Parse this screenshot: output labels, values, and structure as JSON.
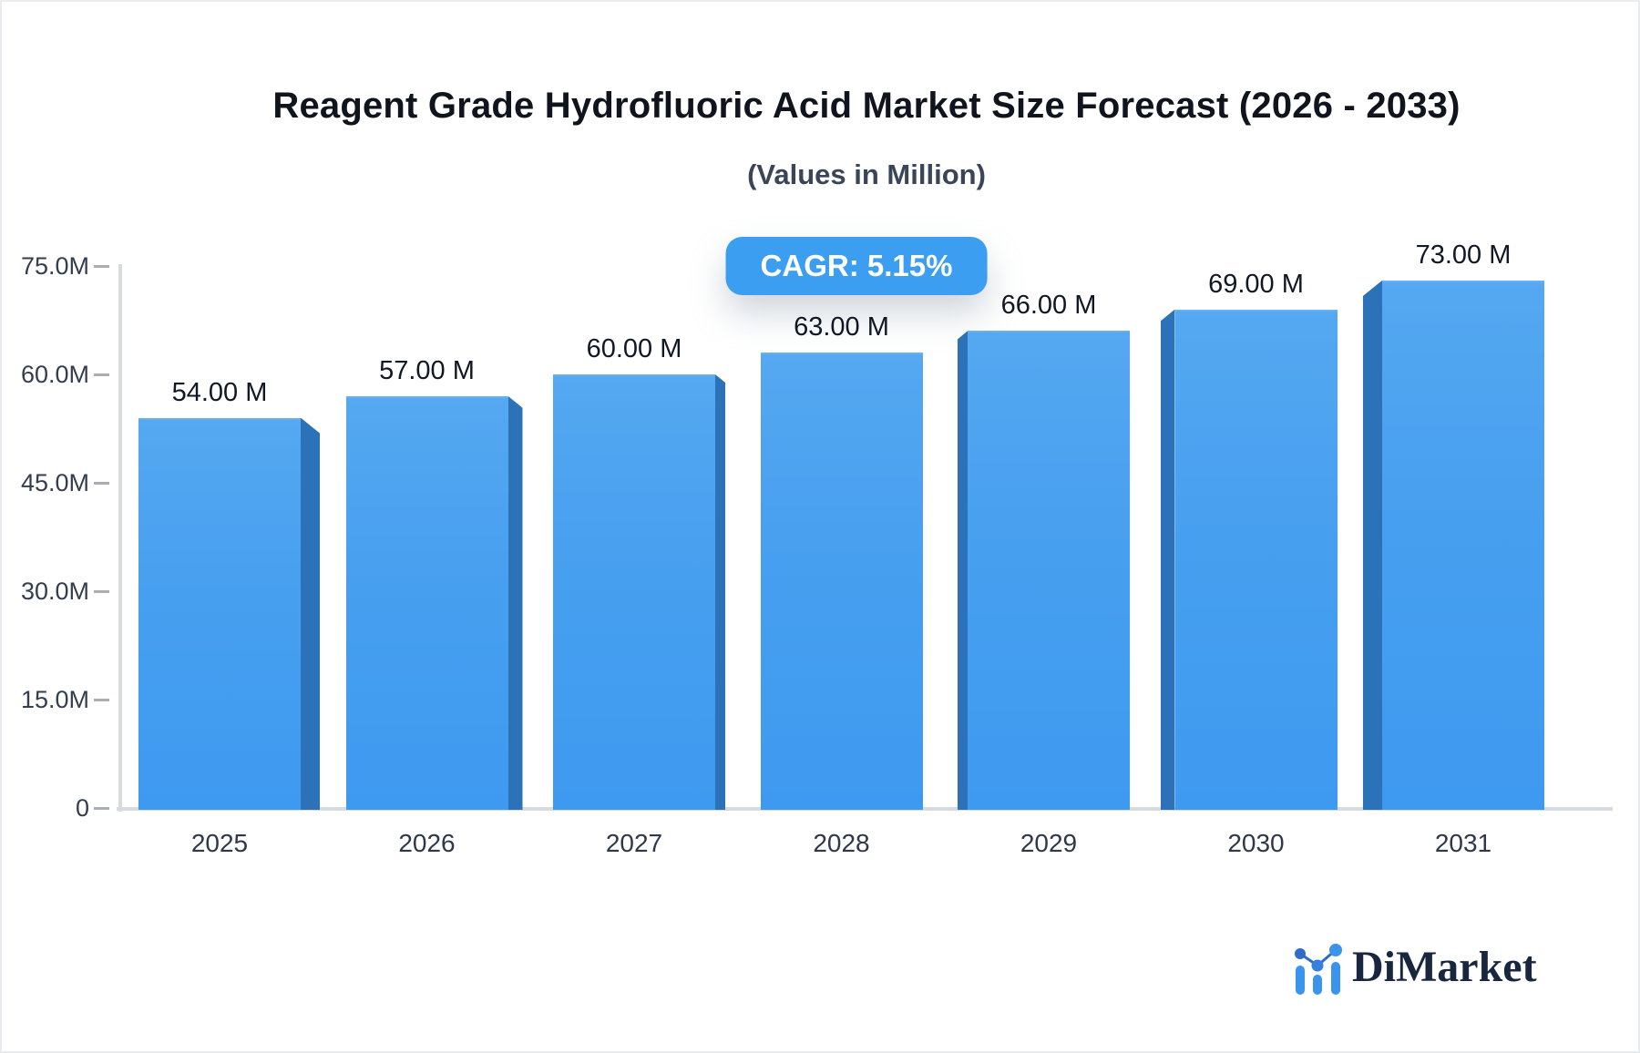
{
  "header": {
    "title": "Reagent Grade Hydrofluoric Acid Market Size Forecast (2026 - 2033)",
    "subtitle": "(Values in Million)"
  },
  "cagr_badge": {
    "label": "CAGR: 5.15%",
    "background": "#3c9ef1",
    "text_color": "#ffffff"
  },
  "chart_data": {
    "type": "bar",
    "title": "Reagent Grade Hydrofluoric Acid Market Size Forecast (2026 - 2033)",
    "subtitle": "(Values in Million)",
    "categories": [
      "2025",
      "2026",
      "2027",
      "2028",
      "2029",
      "2030",
      "2031"
    ],
    "values": [
      54,
      57,
      60,
      63,
      66,
      69,
      73
    ],
    "value_labels": [
      "54.00 M",
      "57.00 M",
      "60.00 M",
      "63.00 M",
      "66.00 M",
      "69.00 M",
      "73.00 M"
    ],
    "xlabel": "",
    "ylabel": "",
    "ylim": [
      0,
      75
    ],
    "yticks": [
      {
        "value": 75,
        "label": "75.0M"
      },
      {
        "value": 60,
        "label": "60.0M"
      },
      {
        "value": 45,
        "label": "45.0M"
      },
      {
        "value": 30,
        "label": "30.0M"
      },
      {
        "value": 15,
        "label": "15.0M"
      },
      {
        "value": 0,
        "label": "0"
      }
    ],
    "grid": false,
    "legend": false,
    "annotations": [
      "CAGR: 5.15%"
    ],
    "colors": {
      "bar_face": "#479fef",
      "bar_face_top": "#55a8f1",
      "bar_face_bottom": "#3e9af0",
      "bar_side_3d": "#2b72b8",
      "axis_line": "#d7dbdf",
      "tick_label": "#333e4e",
      "value_label": "#101826"
    }
  },
  "footer": {
    "brand": "DiMarket",
    "logo_bar_color": "#3b94ec",
    "logo_dot_dark": "#2d6cc9",
    "text_color": "#18273f"
  }
}
